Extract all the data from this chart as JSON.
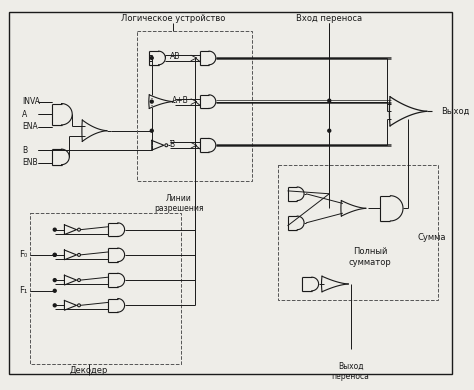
{
  "bg_color": "#eeede8",
  "line_color": "#1a1a1a",
  "fig_width": 4.74,
  "fig_height": 3.9,
  "dpi": 100,
  "labels": {
    "logic_unit": "Логическое устройство",
    "carry_in": "Вход переноса",
    "inva": "INVA",
    "a": "A",
    "ena": "ENA",
    "b": "B",
    "enb": "ENB",
    "ab": "AB",
    "apb": "A+B",
    "b_inv": "B̅",
    "linii": "Линии",
    "razresheniya": "разрешения",
    "f0": "F₀",
    "f1": "F₁",
    "decoder": "Декодер",
    "carry_out": "Выход\nпереноса",
    "output": "Выход",
    "summa": "Сумма",
    "full_adder": "Полный\nсумматор"
  }
}
